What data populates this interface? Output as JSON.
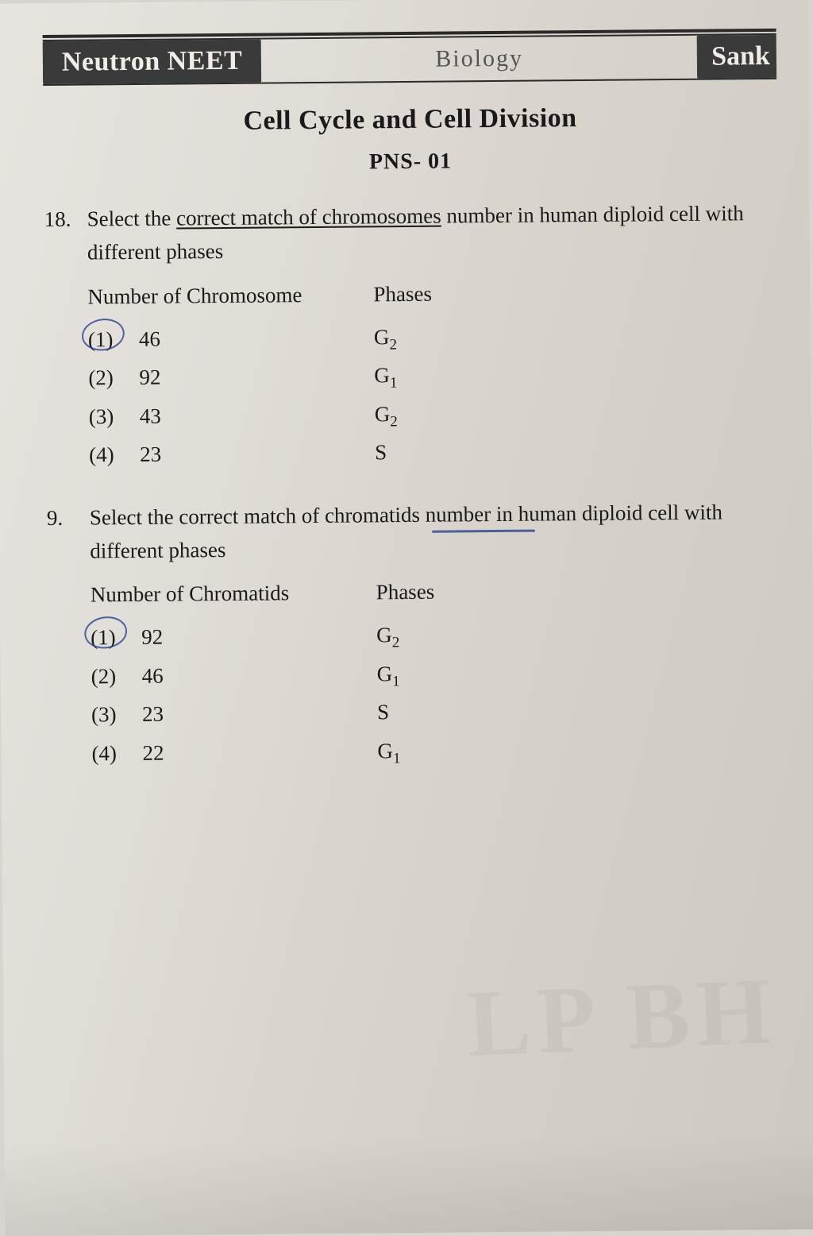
{
  "header": {
    "brand": "Neutron NEET",
    "subject": "Biology",
    "right": "Sank"
  },
  "chapter": "Cell Cycle and Cell Division",
  "pns": "PNS- 01",
  "q18": {
    "num": "18.",
    "text_pre": "Select the ",
    "text_u": "correct match of chromosomes",
    "text_post": " number in human diploid cell with different phases",
    "colA": "Number of Chromosome",
    "colB": "Phases",
    "options": [
      {
        "label": "(1)",
        "a": "46",
        "b_base": "G",
        "b_sub": "2",
        "circled": true
      },
      {
        "label": "(2)",
        "a": "92",
        "b_base": "G",
        "b_sub": "1"
      },
      {
        "label": "(3)",
        "a": "43",
        "b_base": "G",
        "b_sub": "2"
      },
      {
        "label": "(4)",
        "a": "23",
        "b_base": "S",
        "b_sub": ""
      }
    ]
  },
  "q19": {
    "num": "9.",
    "text_pre": "Select the correct match of ",
    "text_u": "chromatids",
    "text_post": " number in human diploid cell with different phases",
    "colA": "Number of Chromatids",
    "colB": "Phases",
    "options": [
      {
        "label": "(1)",
        "a": "92",
        "b_base": "G",
        "b_sub": "2",
        "circled": true
      },
      {
        "label": "(2)",
        "a": "46",
        "b_base": "G",
        "b_sub": "1"
      },
      {
        "label": "(3)",
        "a": "23",
        "b_base": "S",
        "b_sub": ""
      },
      {
        "label": "(4)",
        "a": "22",
        "b_base": "G",
        "b_sub": "1"
      }
    ]
  },
  "style": {
    "mark_color": "#1a3a8a"
  }
}
